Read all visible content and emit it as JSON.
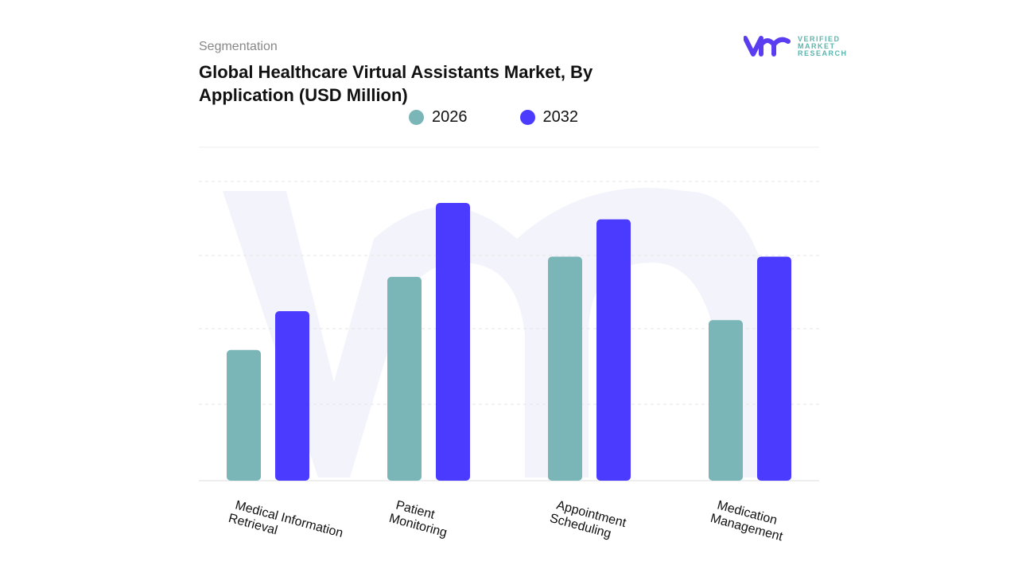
{
  "header": {
    "segment_label": "Segmentation",
    "title": "Global Healthcare Virtual Assistants Market, By Application (USD Million)"
  },
  "logo": {
    "icon": "vmr-logo",
    "lines": [
      "VERIFIED",
      "MARKET",
      "RESEARCH"
    ]
  },
  "colors": {
    "2026": "#7ab5b8",
    "2032": "#4b3bff",
    "watermark": "#f3f4fb",
    "grid": "#e6e6e6"
  },
  "chart_data": {
    "type": "bar",
    "title": "Global Healthcare Virtual Assistants Market, By Application (USD Million)",
    "categories": [
      [
        "Medical Information",
        "Retrieval"
      ],
      [
        "Patient",
        "Monitoring"
      ],
      [
        "Appointment",
        "Scheduling"
      ],
      [
        "Medication",
        "Management"
      ]
    ],
    "series": [
      {
        "name": "2026",
        "values": [
          1.75,
          2.73,
          3.0,
          2.15
        ]
      },
      {
        "name": "2032",
        "values": [
          2.27,
          3.72,
          3.5,
          3.0
        ]
      }
    ],
    "ylim": [
      0,
      4.05
    ],
    "grid": true,
    "legend": "top-center",
    "xlabel": "",
    "ylabel": ""
  }
}
